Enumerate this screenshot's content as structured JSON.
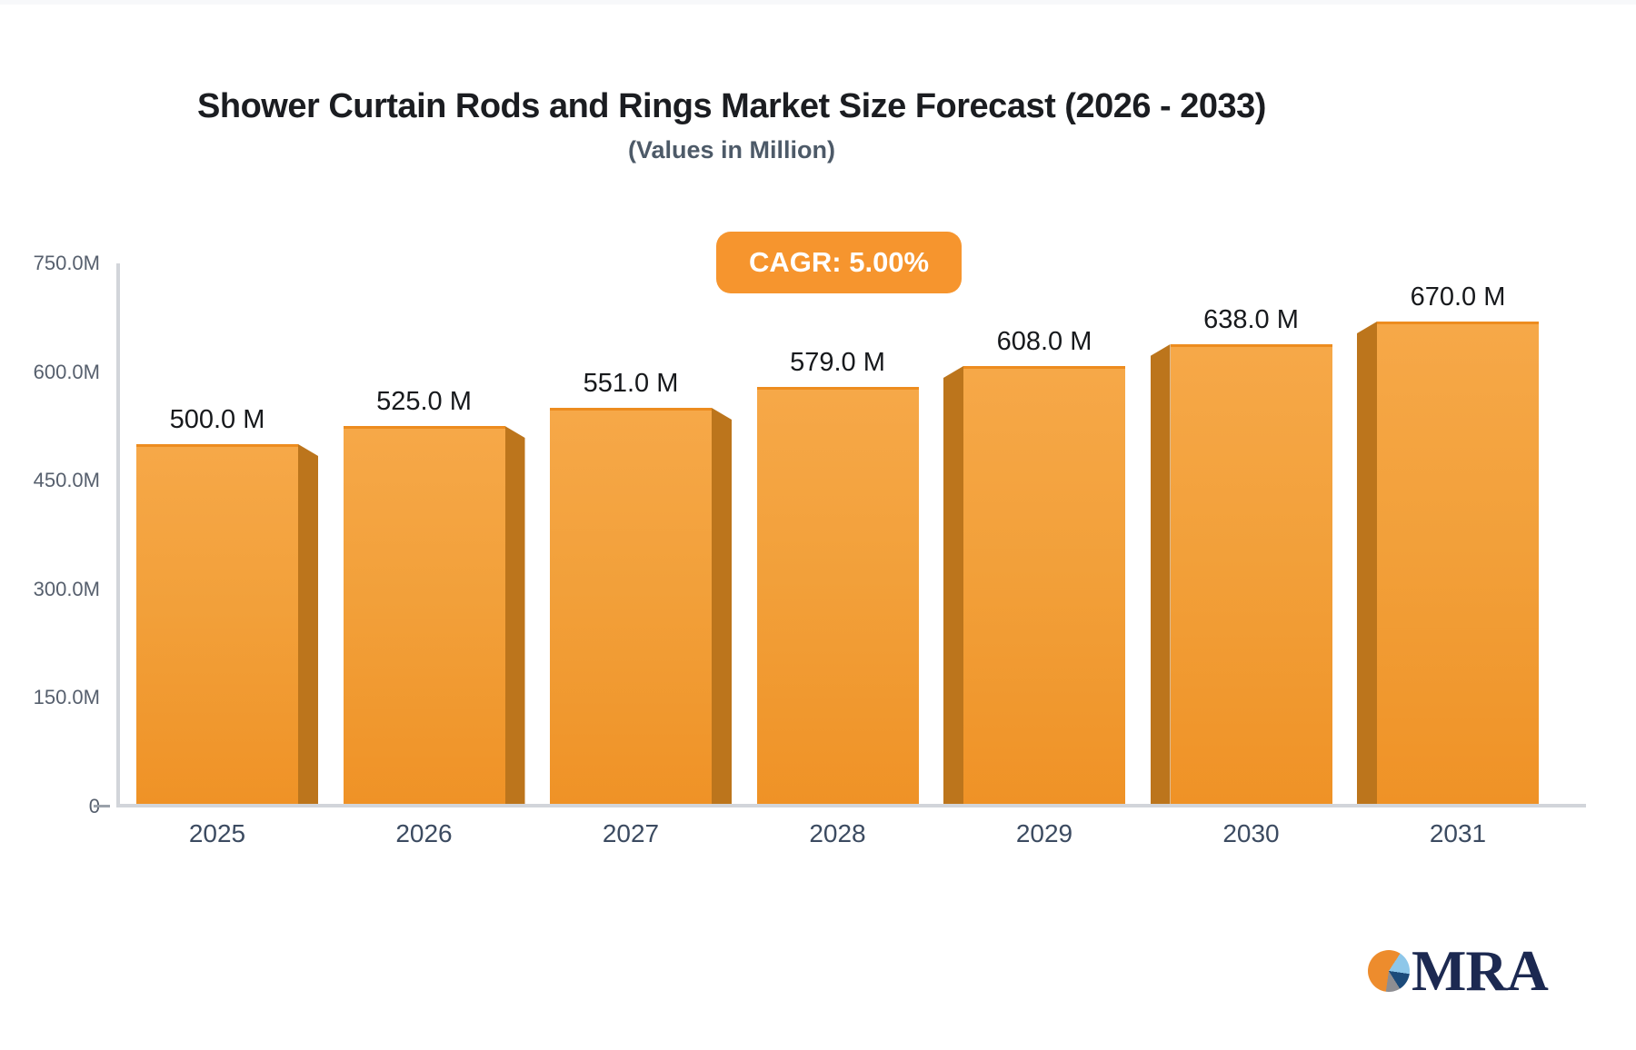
{
  "header": {
    "title": "Shower Curtain Rods and Rings Market Size Forecast (2026 - 2033)",
    "subtitle": "(Values in Million)",
    "cagr_badge": "CAGR: 5.00%"
  },
  "logo": {
    "text": "MRA"
  },
  "colors": {
    "bar_face_top": "#f6a848",
    "bar_face_bottom": "#ef9226",
    "bar_side": "#bc751c",
    "badge_bg": "#f6952e",
    "axis_line": "#d2d5da",
    "title_text": "#1b1d21",
    "axis_label_text": "#3c4b61",
    "logo_navy": "#1c2951"
  },
  "chart_data": {
    "type": "bar",
    "title": "Shower Curtain Rods and Rings Market Size Forecast (2026 - 2033)",
    "subtitle": "(Values in Million)",
    "categories": [
      "2025",
      "2026",
      "2027",
      "2028",
      "2029",
      "2030",
      "2031"
    ],
    "values": [
      500,
      525,
      551,
      579,
      608,
      638,
      670
    ],
    "bar_labels": [
      "500.0 M",
      "525.0 M",
      "551.0 M",
      "579.0 M",
      "608.0 M",
      "638.0 M",
      "670.0 M"
    ],
    "cagr_annotation": "CAGR: 5.00%",
    "xlabel": "",
    "ylabel": "",
    "ylim": [
      0,
      750
    ],
    "yticks": [
      {
        "value": 0,
        "label": "0",
        "dash": true
      },
      {
        "value": 150,
        "label": "150.0M",
        "dash": false
      },
      {
        "value": 300,
        "label": "300.0M",
        "dash": false
      },
      {
        "value": 450,
        "label": "450.0M",
        "dash": false
      },
      {
        "value": 600,
        "label": "600.0M",
        "dash": false
      },
      {
        "value": 750,
        "label": "750.0M",
        "dash": false
      }
    ],
    "grid": false,
    "legend": false,
    "style": "3d-perspective-bars"
  }
}
